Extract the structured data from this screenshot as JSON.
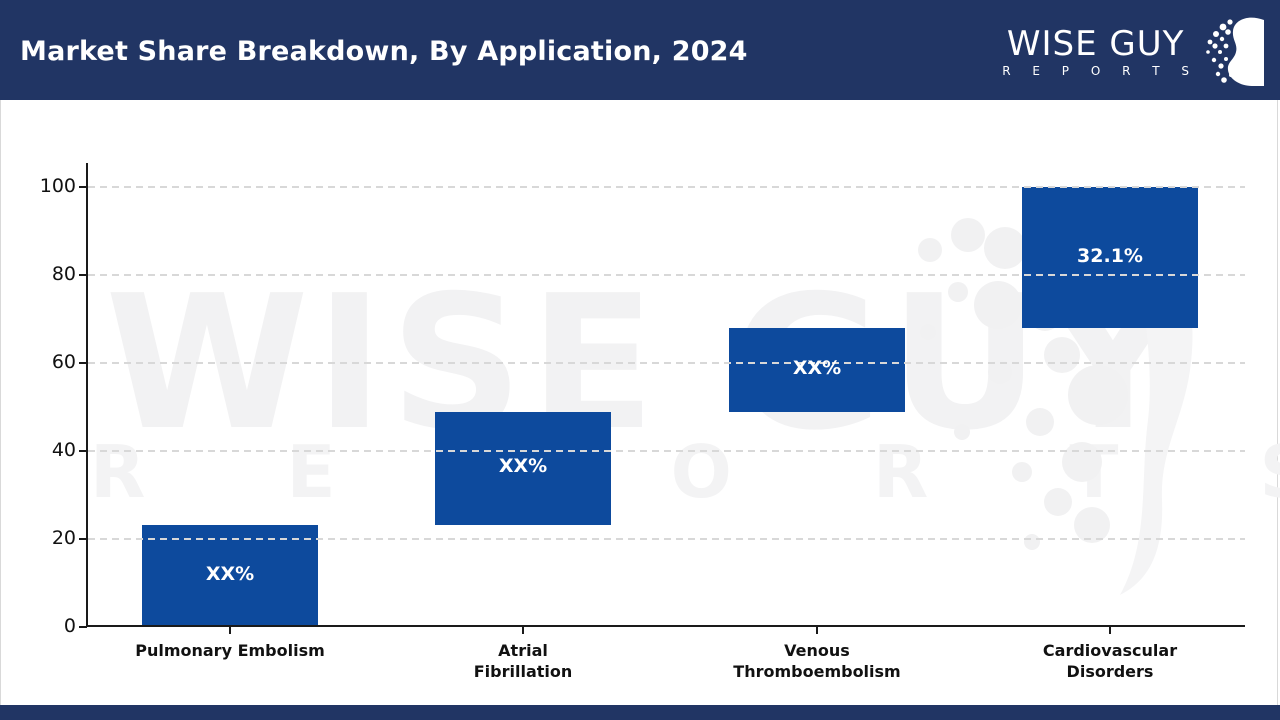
{
  "header": {
    "title": "Market Share Breakdown, By Application, 2024",
    "bg_color": "#213564",
    "logo": {
      "line1": "WISE GUY",
      "line2": "R E P O R T S"
    }
  },
  "watermark": {
    "line1": "WISE GUY",
    "line2": "R E P O R T S"
  },
  "chart_data": {
    "type": "bar",
    "subtype": "waterfall",
    "title": "Market Share Breakdown, By Application, 2024",
    "categories": [
      "Pulmonary Embolism",
      "Atrial\nFibrillation",
      "Venous\nThromboembolism",
      "Cardiovascular\nDisorders"
    ],
    "segments": [
      {
        "category": "Pulmonary Embolism",
        "start": 0,
        "end": 23.2,
        "value": 23.2,
        "label": "XX%"
      },
      {
        "category": "Atrial Fibrillation",
        "start": 23.2,
        "end": 48.9,
        "value": 25.7,
        "label": "XX%"
      },
      {
        "category": "Venous Thromboembolism",
        "start": 48.9,
        "end": 67.9,
        "value": 19.0,
        "label": "XX%"
      },
      {
        "category": "Cardiovascular Disorders",
        "start": 67.9,
        "end": 100,
        "value": 32.1,
        "label": "32.1%"
      }
    ],
    "ylim": [
      0,
      100
    ],
    "yticks": [
      0,
      20,
      40,
      60,
      80,
      100
    ],
    "xlabel": "",
    "ylabel": "",
    "grid": "horizontal dashed, drawn over bars",
    "legend": "none",
    "bar_color": "#0d4a9d",
    "bar_label_color": "#ffffff",
    "axis_color": "#1a1a1a"
  }
}
